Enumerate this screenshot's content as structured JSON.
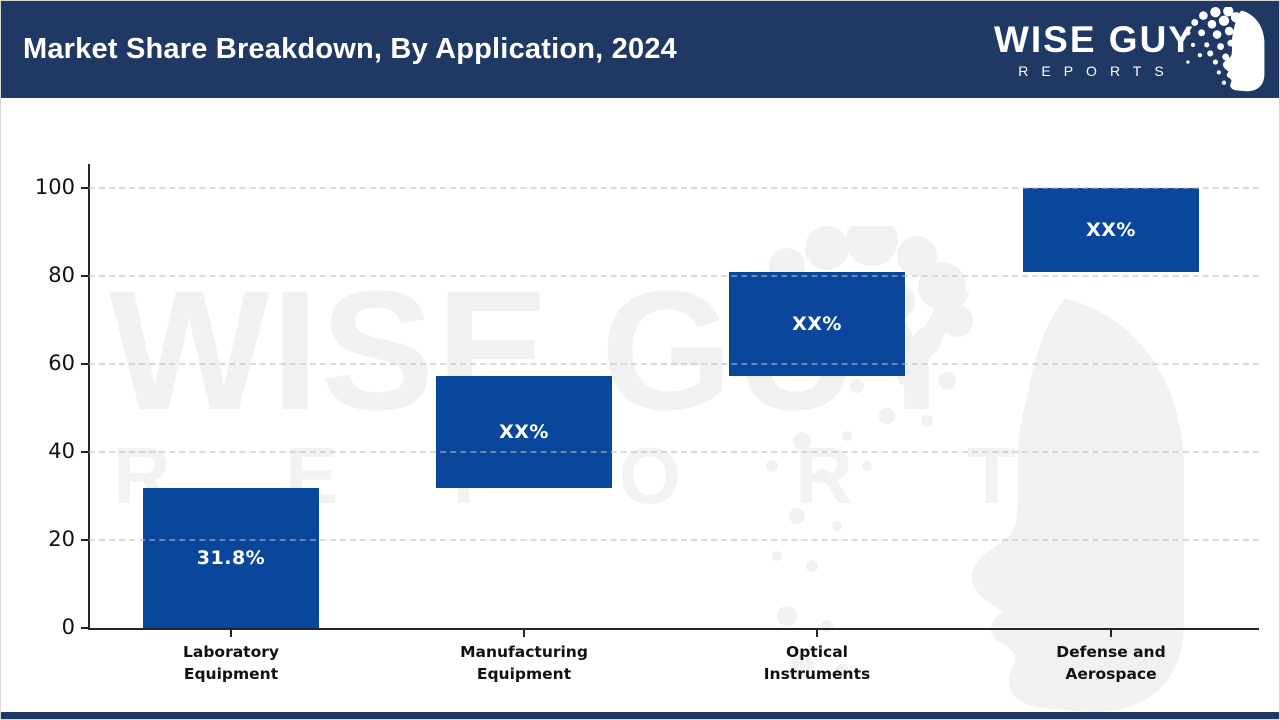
{
  "header": {
    "title": "Market Share Breakdown, By Application, 2024",
    "logo": {
      "line1": "WISE GUY",
      "line2": "REPORTS"
    }
  },
  "watermark": {
    "line1": "WISE GUY",
    "line2": "R E P O R T S"
  },
  "colors": {
    "header_bg": "#1f3864",
    "footer_bg": "#1f3864",
    "bar_color": "#0a479c",
    "bar_label_color": "#ffffff",
    "axis_color": "#262626",
    "grid_color": "#e0e0e0",
    "watermark_color": "#f1f1f1",
    "title_color": "#ffffff"
  },
  "chart_data": {
    "type": "bar",
    "subtype": "waterfall",
    "title": "Market Share Breakdown, By Application, 2024",
    "categories": [
      [
        "Laboratory",
        "Equipment"
      ],
      [
        "Manufacturing",
        "Equipment"
      ],
      [
        "Optical",
        "Instruments"
      ],
      [
        "Defense and",
        "Aerospace"
      ]
    ],
    "segments": [
      {
        "name": "Laboratory Equipment",
        "start": 0,
        "end": 31.8,
        "label": "31.8%"
      },
      {
        "name": "Manufacturing Equipment",
        "start": 31.8,
        "end": 57.2,
        "label": "XX%"
      },
      {
        "name": "Optical Instruments",
        "start": 57.2,
        "end": 80.9,
        "label": "XX%"
      },
      {
        "name": "Defense and Aerospace",
        "start": 80.9,
        "end": 100,
        "label": "XX%"
      }
    ],
    "yticks": [
      0,
      20,
      40,
      60,
      80,
      100
    ],
    "ylim": [
      0,
      104
    ],
    "grid": "horizontal dashed",
    "legend": "none"
  }
}
